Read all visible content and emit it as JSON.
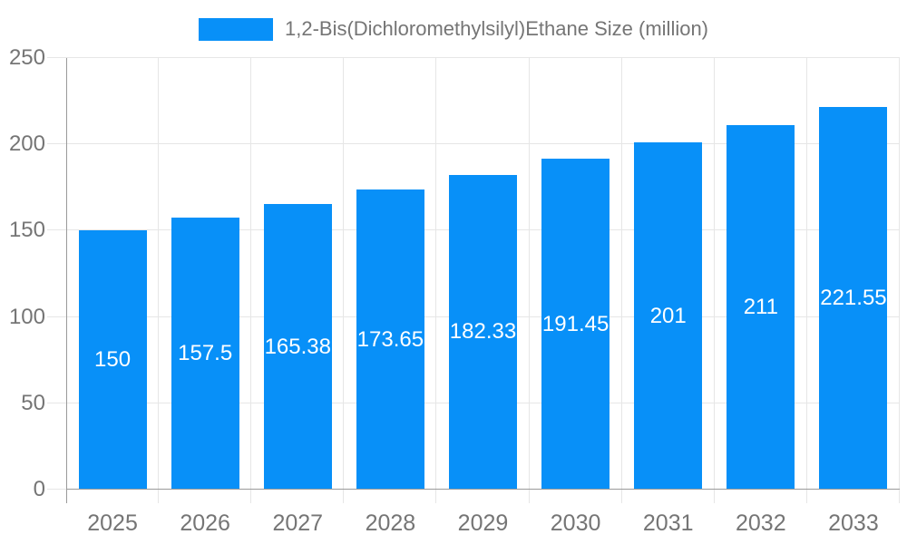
{
  "chart_data": {
    "type": "bar",
    "title": "1,2-Bis(Dichloromethylsilyl)Ethane Size (million)",
    "series": [
      {
        "name": "1,2-Bis(Dichloromethylsilyl)Ethane Size (million)",
        "values": [
          150,
          157.5,
          165.38,
          173.65,
          182.33,
          191.45,
          201,
          211,
          221.55
        ]
      }
    ],
    "categories": [
      "2025",
      "2026",
      "2027",
      "2028",
      "2029",
      "2030",
      "2031",
      "2032",
      "2033"
    ],
    "value_labels": [
      "150",
      "157.5",
      "165.38",
      "173.65",
      "182.33",
      "191.45",
      "201",
      "211",
      "221.55"
    ],
    "xlabel": "",
    "ylabel": "",
    "ylim": [
      0,
      250
    ],
    "yticks": [
      0,
      50,
      100,
      150,
      200,
      250
    ],
    "grid": true,
    "legend_position": "top",
    "bar_label_position": "center-inside",
    "colors": {
      "bar": "#0890f8",
      "grid": "#e6e6e6",
      "axis": "#9a9a9a",
      "tick_label": "#757575",
      "bar_label": "#ffffff",
      "background": "#ffffff"
    }
  }
}
